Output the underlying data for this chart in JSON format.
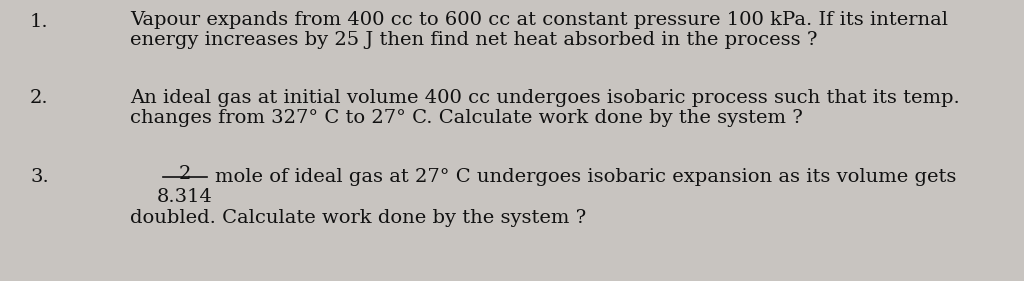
{
  "background_color": "#c8c4c0",
  "top_line1": "Vapour expands from 400 cc to 600 cc at constant pressure 100 kPa. If its internal",
  "top_line2": "energy increases by 25 J then find net heat absorbed in the process ?",
  "q1_number": "1.",
  "q2_number": "2.",
  "q2_line1": "An ideal gas at initial volume 400 cc undergoes isobaric process such that its temp.",
  "q2_line2": "changes from 327° C to 27° C. Calculate work done by the system ?",
  "q3_number": "3.",
  "q3_numerator": "2",
  "q3_denominator": "8.314",
  "q3_line1": "mole of ideal gas at 27° C undergoes isobaric expansion as its volume gets",
  "q3_line2": "doubled. Calculate work done by the system ?",
  "font_size_main": 14.0,
  "text_color": "#111111",
  "font_family": "DejaVu Serif"
}
